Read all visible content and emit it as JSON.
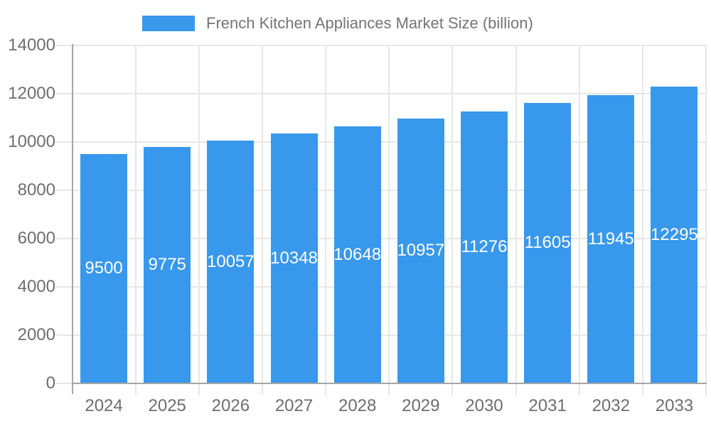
{
  "legend": {
    "label": "French Kitchen Appliances Market Size (billion)"
  },
  "colors": {
    "bar": "#3898EC",
    "grid": "#E7E7E7",
    "axis": "#A6A6A6",
    "tick": "#E7E7E7",
    "axis_label_text": "#6E6E6E",
    "legend_text": "#757575",
    "value_text": "#FFFFFF",
    "background": "#FFFFFF"
  },
  "chart_data": {
    "type": "bar",
    "title": "French Kitchen Appliances Market Size (billion)",
    "categories": [
      "2024",
      "2025",
      "2026",
      "2027",
      "2028",
      "2029",
      "2030",
      "2031",
      "2032",
      "2033"
    ],
    "values": [
      9500,
      9775,
      10057,
      10348,
      10648,
      10957,
      11276,
      11605,
      11945,
      12295
    ],
    "series": [
      {
        "name": "French Kitchen Appliances Market Size (billion)",
        "values": [
          9500,
          9775,
          10057,
          10348,
          10648,
          10957,
          11276,
          11605,
          11945,
          12295
        ]
      }
    ],
    "xlabel": "",
    "ylabel": "",
    "ylim": [
      0,
      14000
    ],
    "yticks": [
      0,
      2000,
      4000,
      6000,
      8000,
      10000,
      12000,
      14000
    ],
    "grid": true,
    "legend_position": "top",
    "value_label_position": "inside-center"
  }
}
